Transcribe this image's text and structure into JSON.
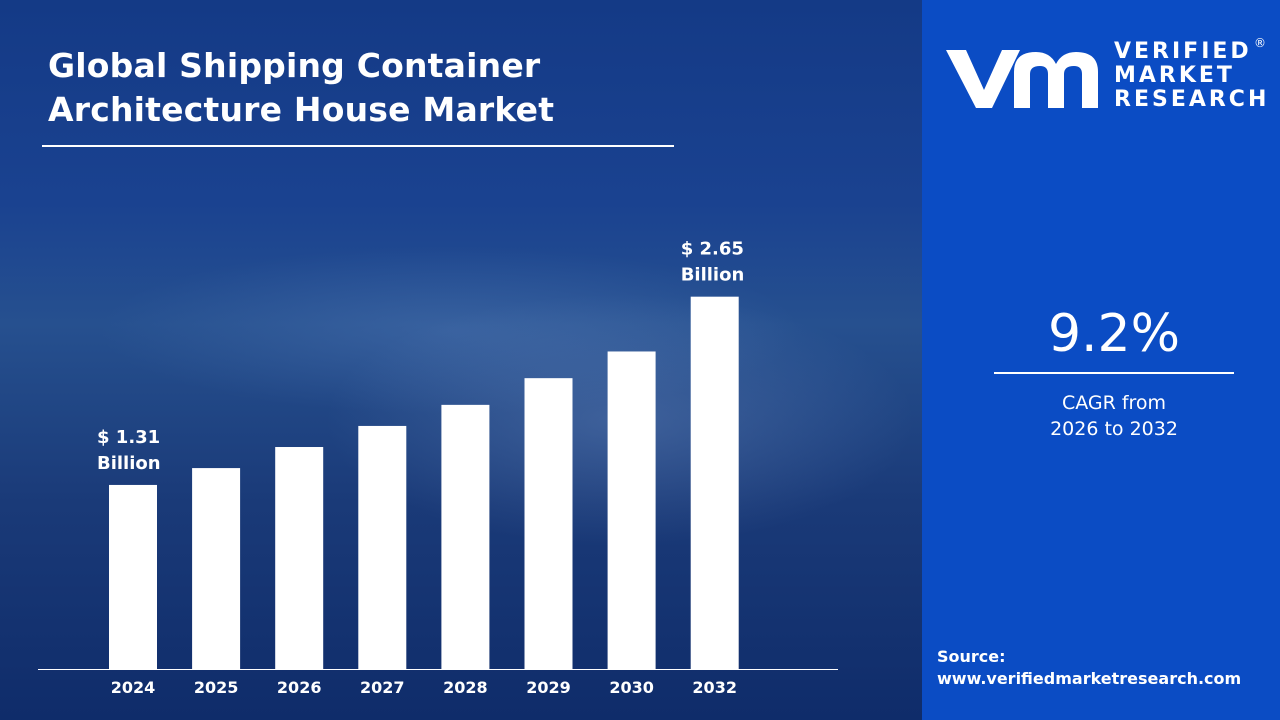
{
  "title": {
    "line1": "Global Shipping Container",
    "line2": "Architecture House Market"
  },
  "chart_data": {
    "type": "bar",
    "categories": [
      "2024",
      "2025",
      "2026",
      "2027",
      "2028",
      "2029",
      "2030",
      "2032"
    ],
    "values": [
      1.31,
      1.43,
      1.58,
      1.73,
      1.88,
      2.07,
      2.26,
      2.65
    ],
    "unit": "USD Billion",
    "data_labels": {
      "2024": [
        "$ 1.31",
        "Billion"
      ],
      "2032": [
        "$ 2.65",
        "Billion"
      ]
    },
    "title": "",
    "xlabel": "",
    "ylabel": "",
    "ylim": [
      0,
      2.8
    ],
    "grid": false,
    "legend": "none",
    "bar_color": "#ffffff"
  },
  "brand": {
    "logo_name": "vmr-logo",
    "line1": "VERIFIED",
    "line2": "MARKET",
    "line3": "RESEARCH",
    "registered": "®"
  },
  "cagr": {
    "value": "9.2%",
    "label_line1": "CAGR from",
    "label_line2": "2026 to 2032"
  },
  "source": {
    "label": "Source:",
    "url": "www.verifiedmarketresearch.com"
  },
  "colors": {
    "panel_blue": "#0b4cc4",
    "background_blue": "#143a86",
    "text": "#ffffff"
  }
}
